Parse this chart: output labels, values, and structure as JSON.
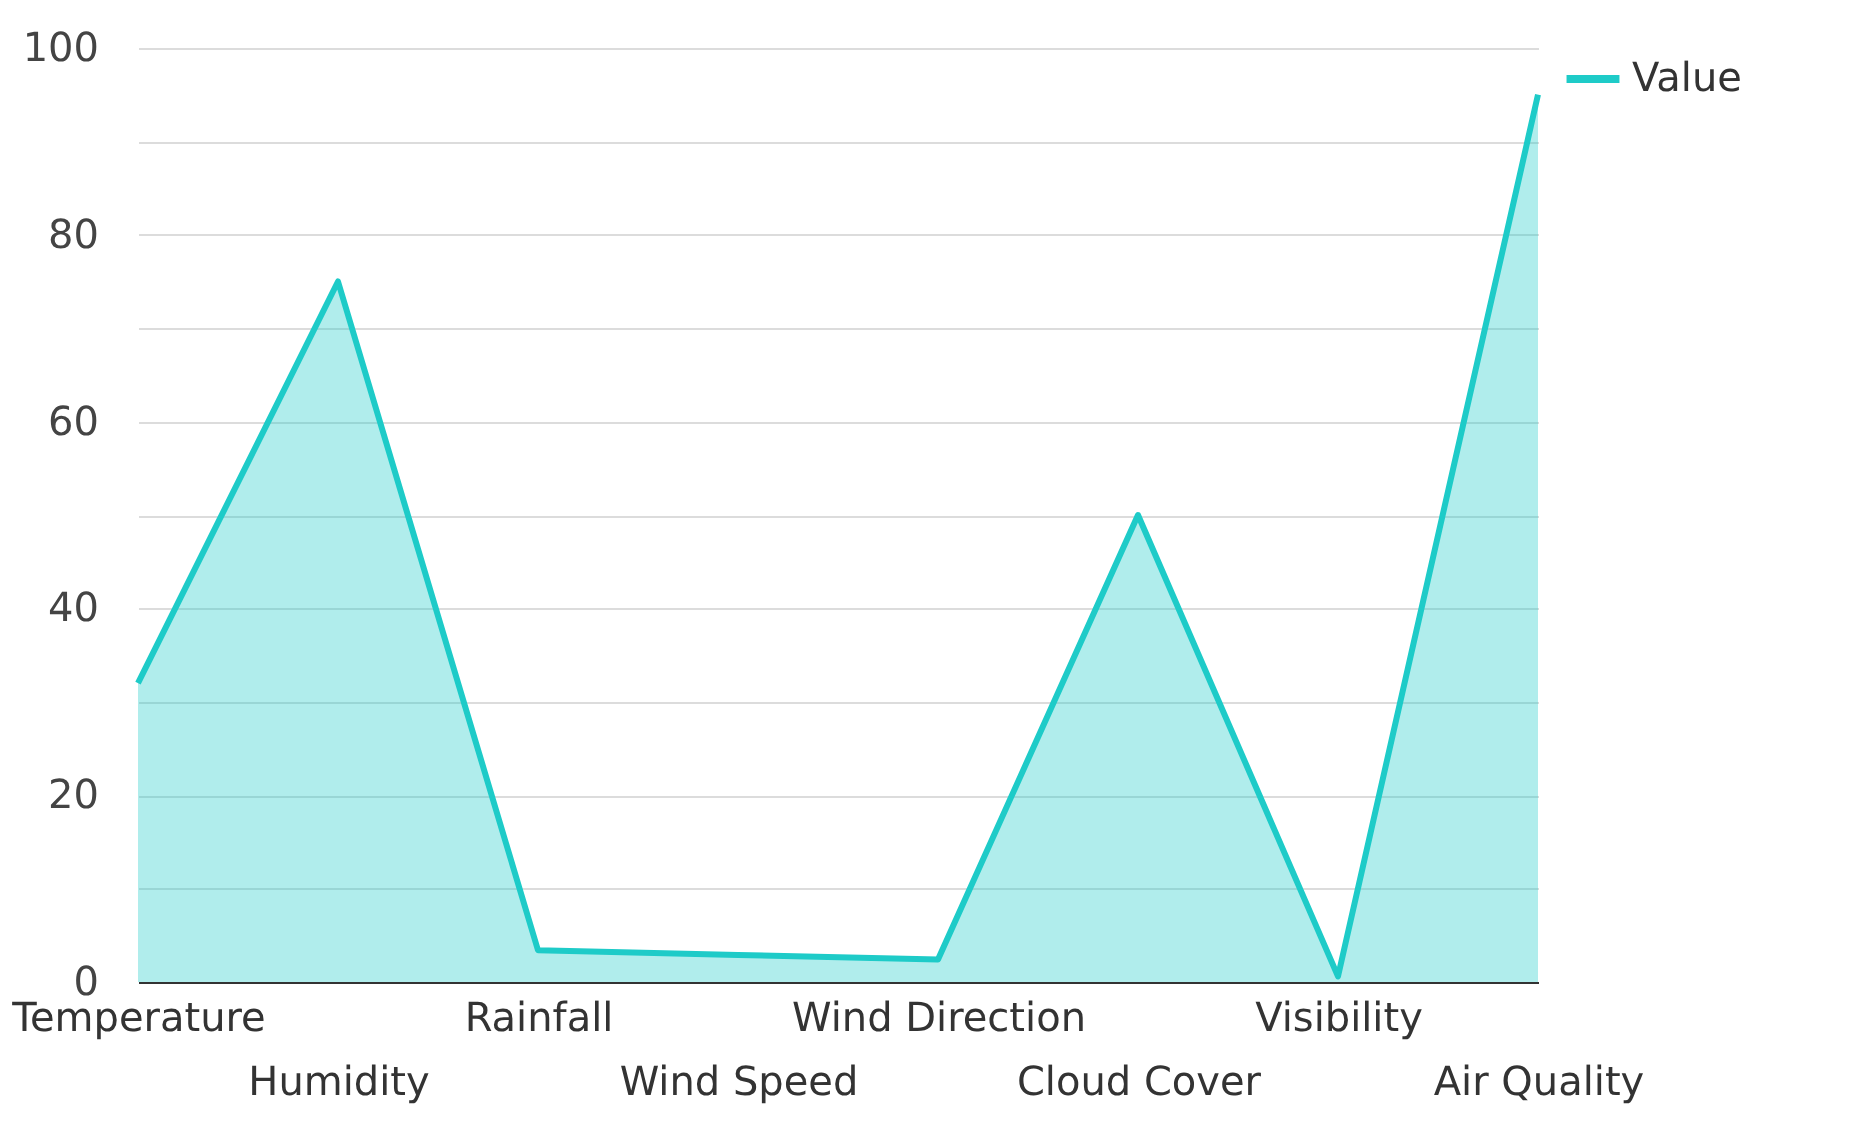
{
  "chart_data": {
    "type": "area",
    "categories": [
      "Temperature",
      "Humidity",
      "Rainfall",
      "Wind Speed",
      "Wind Direction",
      "Cloud Cover",
      "Visibility",
      "Air Quality"
    ],
    "series": [
      {
        "name": "Value",
        "color": "#1ecbc8",
        "values": [
          32,
          75,
          3.4,
          2.9,
          2.4,
          50,
          0.6,
          95
        ]
      }
    ],
    "ylim": [
      0,
      100
    ],
    "yticks": [
      0,
      {
        "value": 10,
        "label": null
      },
      20,
      {
        "value": 30,
        "label": null
      },
      40,
      {
        "value": 50,
        "label": null
      },
      60,
      {
        "value": 70,
        "label": null
      },
      80,
      {
        "value": 90,
        "label": null
      },
      100
    ],
    "grid": "y",
    "legend": "top right"
  }
}
